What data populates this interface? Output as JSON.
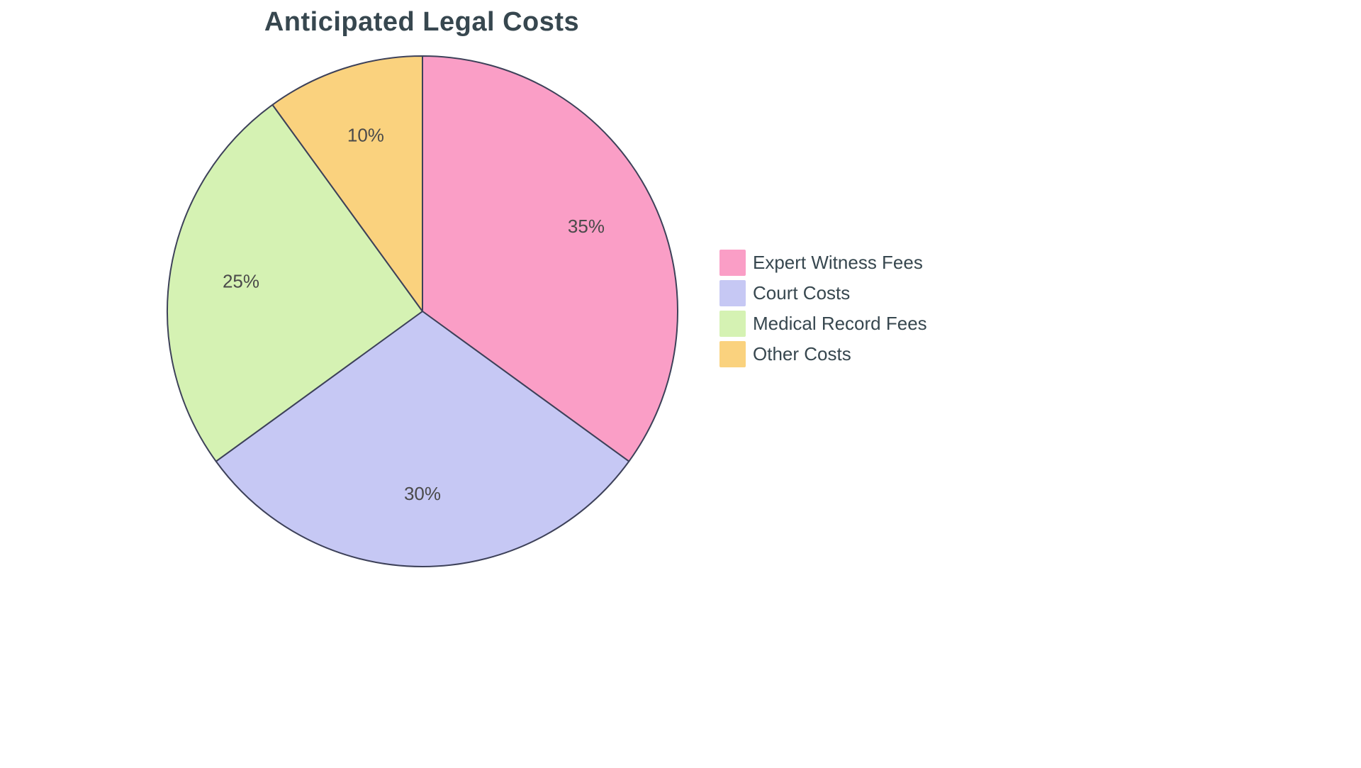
{
  "chart_data": {
    "type": "pie",
    "title": "Anticipated Legal Costs",
    "labels": [
      "Expert Witness Fees",
      "Court Costs",
      "Medical Record Fees",
      "Other Costs"
    ],
    "values": [
      35,
      30,
      25,
      10
    ],
    "value_labels": [
      "35%",
      "30%",
      "25%",
      "10%"
    ],
    "colors": [
      "#FA9EC6",
      "#C6C8F4",
      "#D5F2B3",
      "#FAD27E"
    ],
    "slice_border_color": "#3D4159",
    "start_angle_deg": 90,
    "direction": "clockwise",
    "legend_position": "right",
    "background": "#FFFFFF",
    "title_color": "#37474F",
    "label_color": "#4A4A4A"
  }
}
